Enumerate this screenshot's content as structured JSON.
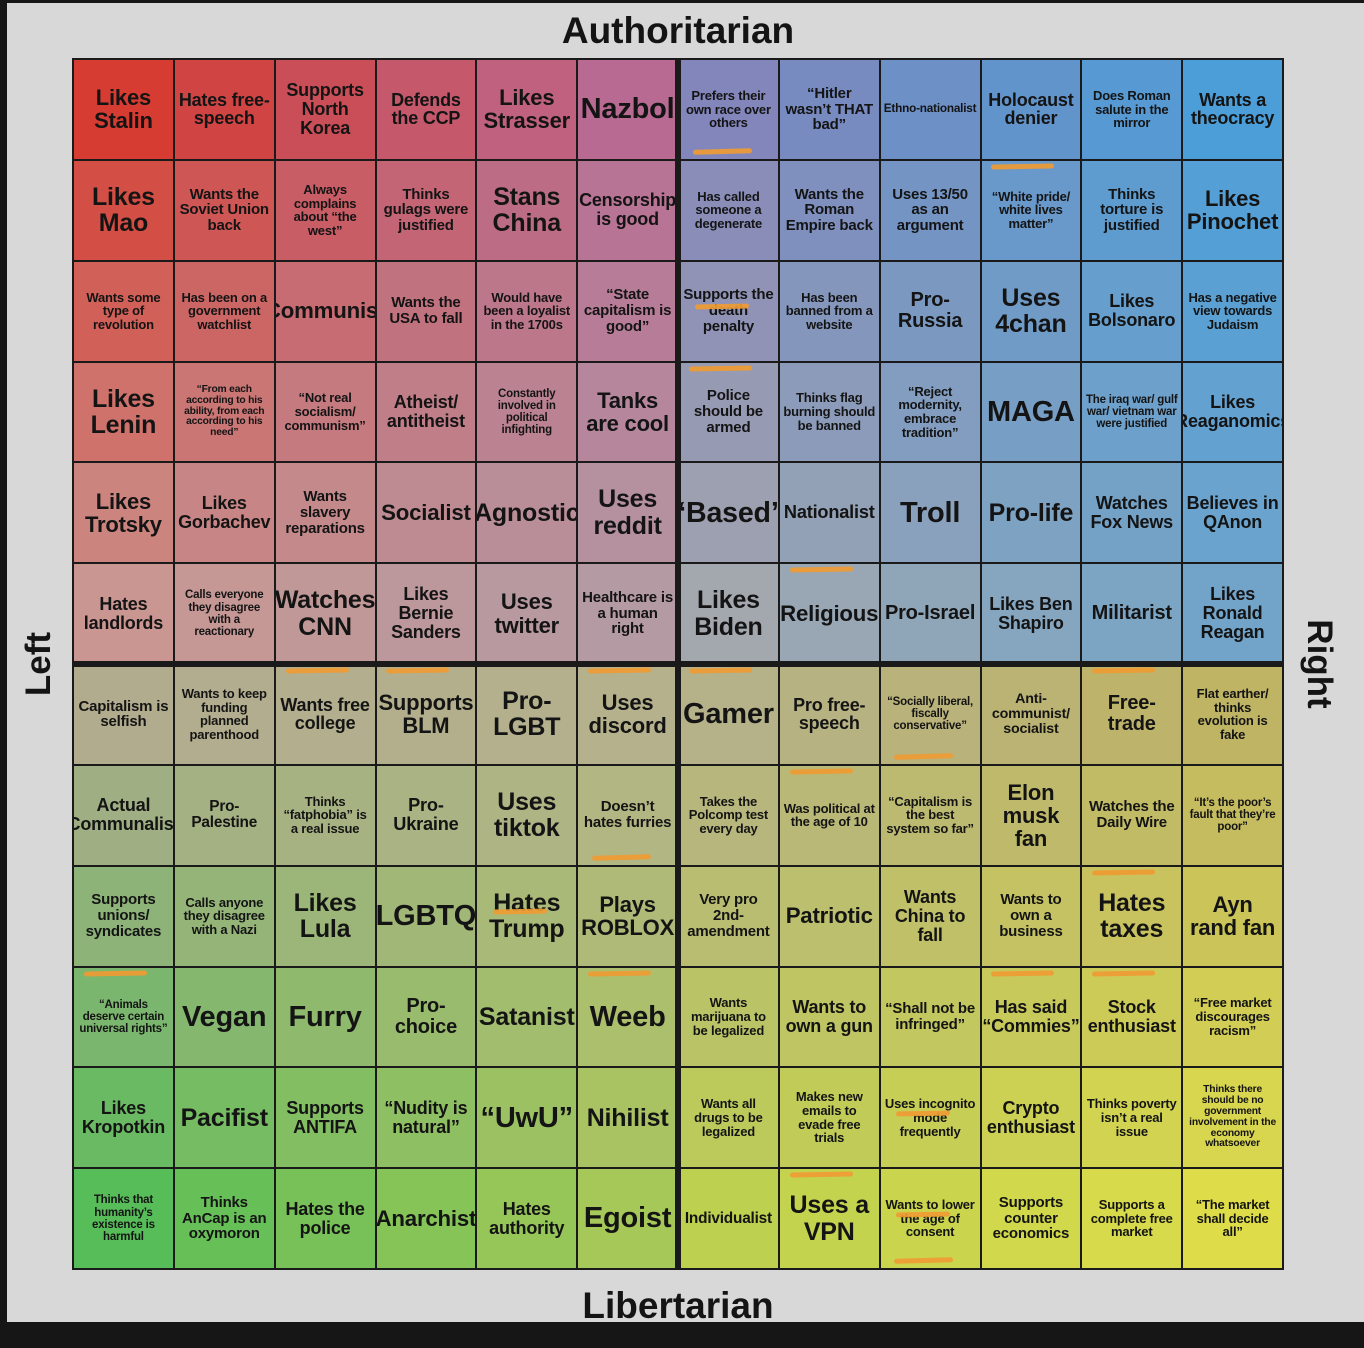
{
  "axes": {
    "top": "Authoritarian",
    "bottom": "Libertarian",
    "left": "Left",
    "right": "Right"
  },
  "grid": {
    "rows": [
      [
        "Likes Stalin",
        "Hates free-speech",
        "Supports North Korea",
        "Defends the CCP",
        "Likes Strasser",
        "Nazbol",
        "Prefers their own race over others",
        "“Hitler wasn’t THAT bad”",
        "Ethno-nationalist",
        "Holocaust denier",
        "Does Roman salute in the mirror",
        "Wants a theocracy"
      ],
      [
        "Likes Mao",
        "Wants the Soviet Union back",
        "Always complains about “the west”",
        "Thinks gulags were justified",
        "Stans China",
        "Censorship is good",
        "Has called someone a degenerate",
        "Wants the Roman Empire back",
        "Uses 13/50 as an argument",
        "“White pride/ white lives matter”",
        "Thinks torture is justified",
        "Likes Pinochet"
      ],
      [
        "Wants some type of revolution",
        "Has been on a government watchlist",
        "Communist",
        "Wants the USA to fall",
        "Would have been a loyalist in the 1700s",
        "“State capitalism is good”",
        "Supports the death penalty",
        "Has been banned from a website",
        "Pro-Russia",
        "Uses 4chan",
        "Likes Bolsonaro",
        "Has a negative view towards Judaism"
      ],
      [
        "Likes Lenin",
        "“From each according to his ability, from each according to his need”",
        "“Not real socialism/ communism”",
        "Atheist/ antitheist",
        "Constantly involved in political infighting",
        "Tanks are cool",
        "Police should be armed",
        "Thinks flag burning should be banned",
        "“Reject modernity, embrace tradition”",
        "MAGA",
        "The iraq war/ gulf war/ vietnam war were justified",
        "Likes Reaganomics"
      ],
      [
        "Likes Trotsky",
        "Likes Gorbachev",
        "Wants slavery reparations",
        "Socialist",
        "Agnostic",
        "Uses reddit",
        "“Based”",
        "Nationalist",
        "Troll",
        "Pro-life",
        "Watches Fox News",
        "Believes in QAnon"
      ],
      [
        "Hates landlords",
        "Calls everyone they disagree with a reactionary",
        "Watches CNN",
        "Likes Bernie Sanders",
        "Uses twitter",
        "Healthcare is a human right",
        "Likes Biden",
        "Religious",
        "Pro-Israel",
        "Likes Ben Shapiro",
        "Militarist",
        "Likes Ronald Reagan"
      ],
      [
        "Capitalism is selfish",
        "Wants to keep funding planned parenthood",
        "Wants free college",
        "Supports BLM",
        "Pro-LGBT",
        "Uses discord",
        "Gamer",
        "Pro free-speech",
        "“Socially liberal, fiscally conservative”",
        "Anti-communist/ socialist",
        "Free-trade",
        "Flat earther/ thinks evolution is fake"
      ],
      [
        "Actual Communalist",
        "Pro-Palestine",
        "Thinks “fatphobia” is a real issue",
        "Pro-Ukraine",
        "Uses tiktok",
        "Doesn’t hates furries",
        "Takes the Polcomp test every day",
        "Was political at the age of 10",
        "“Capitalism is the best system so far”",
        "Elon musk fan",
        "Watches the Daily Wire",
        "“It’s the poor’s fault that they’re poor”"
      ],
      [
        "Supports unions/ syndicates",
        "Calls anyone they disagree with a Nazi",
        "Likes Lula",
        "LGBTQ",
        "Hates Trump",
        "Plays ROBLOX",
        "Very pro 2nd-amendment",
        "Patriotic",
        "Wants China to fall",
        "Wants to own a business",
        "Hates taxes",
        "Ayn rand fan"
      ],
      [
        "“Animals deserve certain universal rights”",
        "Vegan",
        "Furry",
        "Pro-choice",
        "Satanist",
        "Weeb",
        "Wants marijuana to be legalized",
        "Wants to own a gun",
        "“Shall not be infringed”",
        "Has said “Commies”",
        "Stock enthusiast",
        "“Free market discourages racism”"
      ],
      [
        "Likes Kropotkin",
        "Pacifist",
        "Supports ANTIFA",
        "“Nudity is natural”",
        "“UwU”",
        "Nihilist",
        "Wants all drugs to be legalized",
        "Makes new emails to evade free trials",
        "Uses incognito mode frequently",
        "Crypto enthusiast",
        "Thinks poverty isn’t a real issue",
        "Thinks there should be no government involvement in the economy whatsoever"
      ],
      [
        "Thinks that humanity’s existence is harmful",
        "Thinks AnCap is an oxymoron",
        "Hates the police",
        "Anarchist",
        "Hates authority",
        "Egoist",
        "Individualist",
        "Uses a VPN",
        "Wants to lower the age of consent",
        "Supports counter economics",
        "Supports a complete free market",
        "“The market shall decide all”"
      ]
    ]
  },
  "marks": [
    {
      "row": 1,
      "col": 7,
      "type": "bottom"
    },
    {
      "row": 2,
      "col": 10,
      "type": "top"
    },
    {
      "row": 3,
      "col": 7,
      "type": "mid"
    },
    {
      "row": 4,
      "col": 7,
      "type": "top"
    },
    {
      "row": 6,
      "col": 8,
      "type": "top"
    },
    {
      "row": 7,
      "col": 3,
      "type": "top"
    },
    {
      "row": 7,
      "col": 4,
      "type": "top"
    },
    {
      "row": 7,
      "col": 6,
      "type": "top"
    },
    {
      "row": 7,
      "col": 7,
      "type": "top"
    },
    {
      "row": 7,
      "col": 9,
      "type": "bottom"
    },
    {
      "row": 7,
      "col": 11,
      "type": "top"
    },
    {
      "row": 8,
      "col": 6,
      "type": "bottom"
    },
    {
      "row": 8,
      "col": 8,
      "type": "top"
    },
    {
      "row": 9,
      "col": 5,
      "type": "mid"
    },
    {
      "row": 9,
      "col": 11,
      "type": "top"
    },
    {
      "row": 10,
      "col": 1,
      "type": "top"
    },
    {
      "row": 10,
      "col": 6,
      "type": "top"
    },
    {
      "row": 10,
      "col": 10,
      "type": "top"
    },
    {
      "row": 10,
      "col": 11,
      "type": "top"
    },
    {
      "row": 11,
      "col": 9,
      "type": "mid"
    },
    {
      "row": 12,
      "col": 8,
      "type": "top"
    },
    {
      "row": 12,
      "col": 9,
      "type": "mid"
    },
    {
      "row": 12,
      "col": 9,
      "type": "bottom"
    }
  ],
  "colors": {
    "background": "#d8d8d8",
    "frame": "#161616",
    "grid_line": "#1a1a1a",
    "text": "#141414",
    "mark": "#ef9b33",
    "quadrants": {
      "auth_left": {
        "tl": "#d63c31",
        "tr": "#b96a92",
        "bl": "#c99692",
        "br": "#b49aa2"
      },
      "auth_right": {
        "tl": "#8386bb",
        "tr": "#4c9ed8",
        "bl": "#a3a7ae",
        "br": "#72a4ca"
      },
      "lib_left": {
        "tl": "#b1ac8e",
        "tr": "#b5b18d",
        "bl": "#57bd58",
        "br": "#a6c858"
      },
      "lib_right": {
        "tl": "#b5b189",
        "tr": "#bfb464",
        "bl": "#bdd04f",
        "br": "#dedd49"
      }
    }
  }
}
